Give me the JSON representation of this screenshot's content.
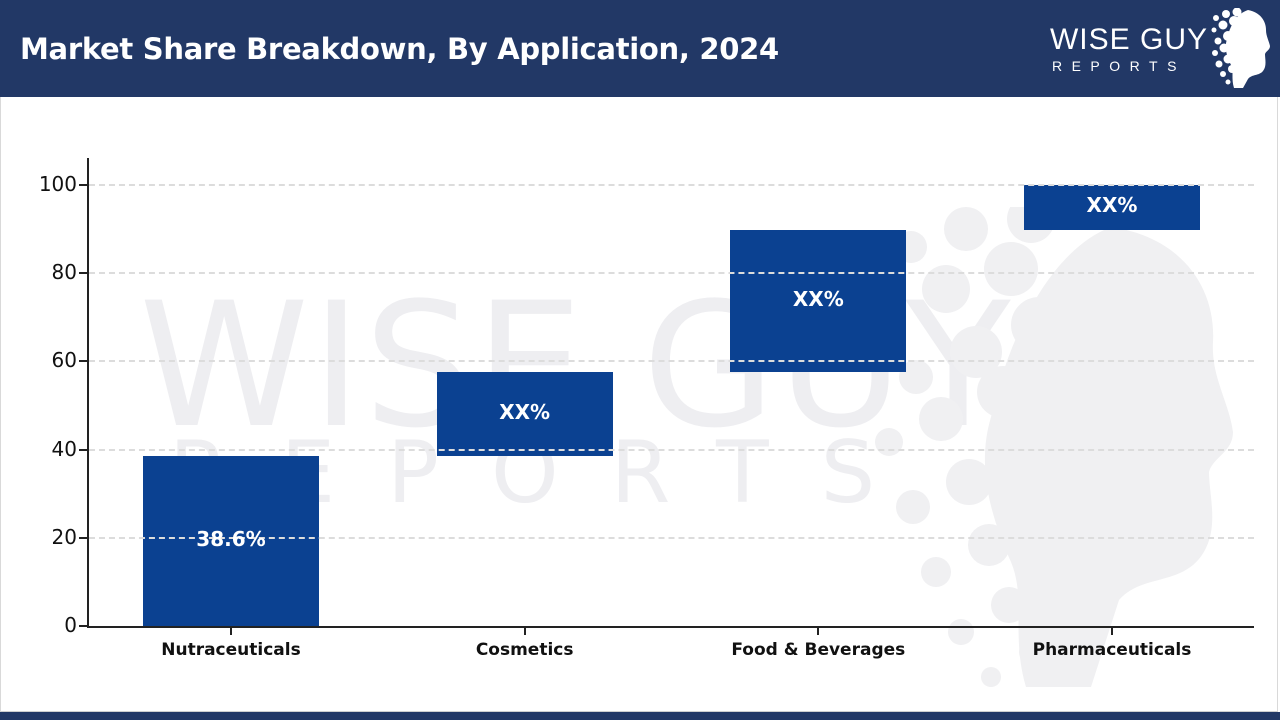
{
  "header": {
    "title": "Market Share Breakdown, By Application, 2024",
    "logo": {
      "line1": "WISE GUY",
      "line2": "REPORTS"
    }
  },
  "watermark": {
    "line1": "WISE GUY",
    "line2": "REPORTS"
  },
  "colors": {
    "header_bg": "#223866",
    "footer_bg": "#223866",
    "bar": "#0b4191",
    "grid": "#dcdcdc",
    "axis": "#222222",
    "bar_label_text": "#ffffff",
    "watermark": "#eeeef1"
  },
  "chart_data": {
    "type": "bar",
    "subtype": "waterfall",
    "title": "Market Share Breakdown, By Application, 2024",
    "categories": [
      "Nutraceuticals",
      "Cosmetics",
      "Food & Beverages",
      "Pharmaceuticals"
    ],
    "segments": [
      {
        "category": "Nutraceuticals",
        "start": 0,
        "end": 38.6,
        "value_label": "38.6%"
      },
      {
        "category": "Cosmetics",
        "start": 38.6,
        "end": 57.5,
        "value_label": "XX%"
      },
      {
        "category": "Food & Beverages",
        "start": 57.5,
        "end": 89.8,
        "value_label": "XX%"
      },
      {
        "category": "Pharmaceuticals",
        "start": 89.8,
        "end": 100,
        "value_label": "XX%"
      }
    ],
    "yticks": [
      0,
      20,
      40,
      60,
      80,
      100
    ],
    "ylim": [
      0,
      100
    ],
    "xlabel": "",
    "ylabel": "",
    "grid": "horizontal-dashed",
    "legend": "none",
    "bar_color": "#0b4191"
  }
}
